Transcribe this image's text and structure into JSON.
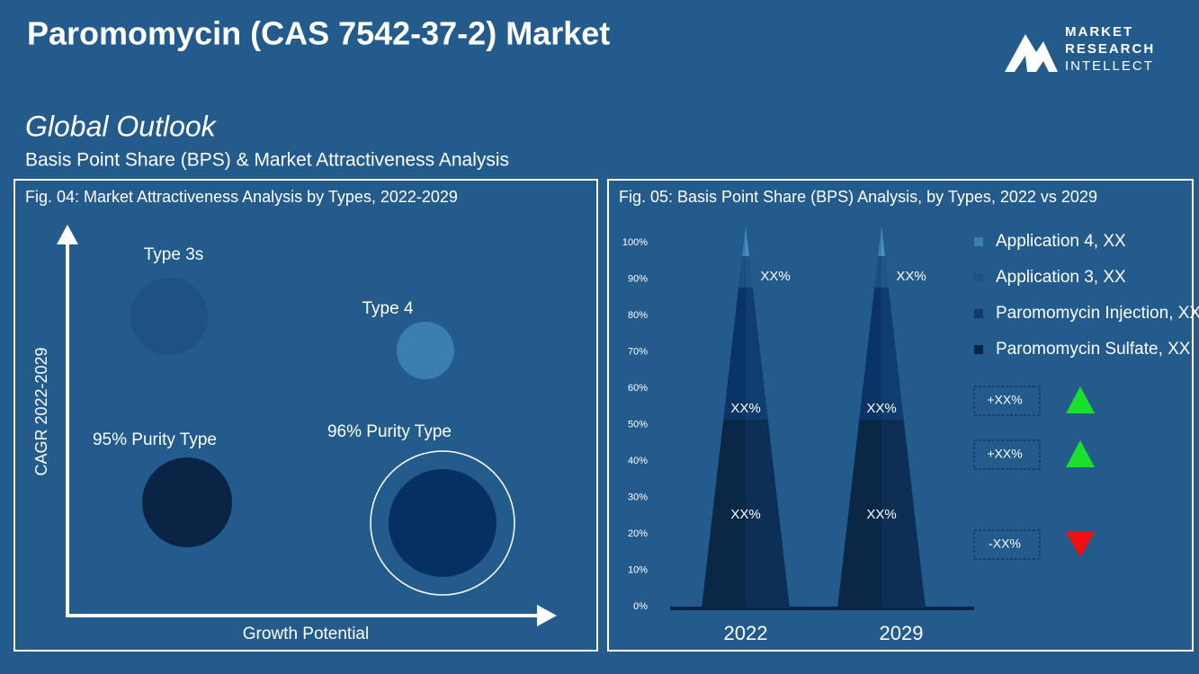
{
  "header": {
    "title": "Paromomycin (CAS 7542-37-2) Market",
    "logo": [
      "MARKET",
      "RESEARCH",
      "INTELLECT"
    ],
    "section": "Global Outlook",
    "subtitle": "Basis Point Share (BPS) & Market Attractiveness  Analysis"
  },
  "fig04": {
    "title": "Fig. 04: Market Attractiveness Analysis by Types, 2022-2029",
    "y_label": "CAGR 2022-2029",
    "x_label": "Growth Potential",
    "bubbles": [
      "Type 3s",
      "Type 4",
      "95% Purity Type",
      "96% Purity Type"
    ]
  },
  "fig05": {
    "title": "Fig. 05: Basis Point Share (BPS) Analysis, by Types, 2022 vs 2029",
    "yticks": [
      "0%",
      "10%",
      "20%",
      "30%",
      "40%",
      "50%",
      "60%",
      "70%",
      "80%",
      "90%",
      "100%"
    ],
    "bars": [
      {
        "year": "2022",
        "labels": [
          "XX%",
          "XX%",
          "XX%"
        ]
      },
      {
        "year": "2029",
        "labels": [
          "XX%",
          "XX%",
          "XX%"
        ]
      }
    ],
    "legend": [
      "Application 4, XX",
      "Application 3, XX",
      "Paromomycin Injection, XX",
      "Paromomycin Sulfate, XX"
    ],
    "changes": [
      "+XX%",
      "+XX%",
      "-XX%"
    ]
  }
}
